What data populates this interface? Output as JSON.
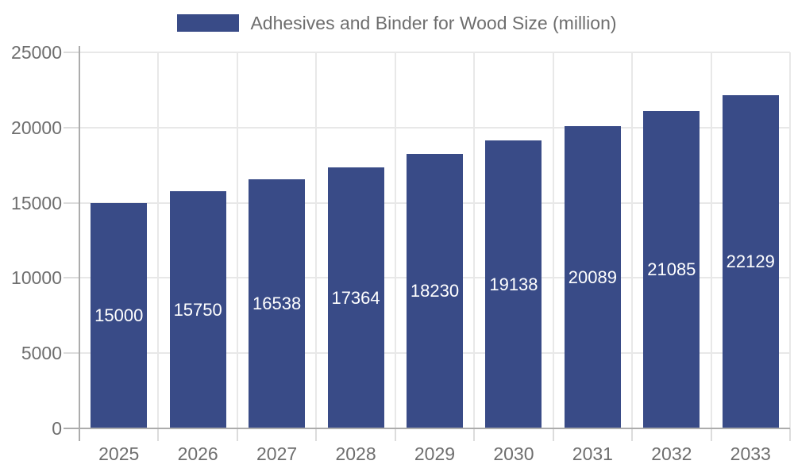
{
  "legend": {
    "label": "Adhesives and Binder for Wood Size (million)"
  },
  "chart_data": {
    "type": "bar",
    "title": "",
    "categories": [
      "2025",
      "2026",
      "2027",
      "2028",
      "2029",
      "2030",
      "2031",
      "2032",
      "2033"
    ],
    "series": [
      {
        "name": "Adhesives and Binder for Wood Size (million)",
        "values": [
          15000,
          15750,
          16538,
          17364,
          18230,
          19138,
          20089,
          21085,
          22129
        ]
      }
    ],
    "xlabel": "",
    "ylabel": "",
    "ylim": [
      0,
      25000
    ],
    "yticks": [
      0,
      5000,
      10000,
      15000,
      20000,
      25000
    ],
    "grid": true,
    "legend_position": "top-center",
    "bar_labels_shown": true,
    "bar_labels_position": "inside-center"
  },
  "colors": {
    "bar": "#394B87",
    "grid": "#E8E8E8",
    "axis_line": "#ACACAC",
    "tick": "#DCDCDC",
    "label_text": "#6E6E6E",
    "bar_label_text": "#FFFFFF",
    "background": "#FFFFFF"
  }
}
